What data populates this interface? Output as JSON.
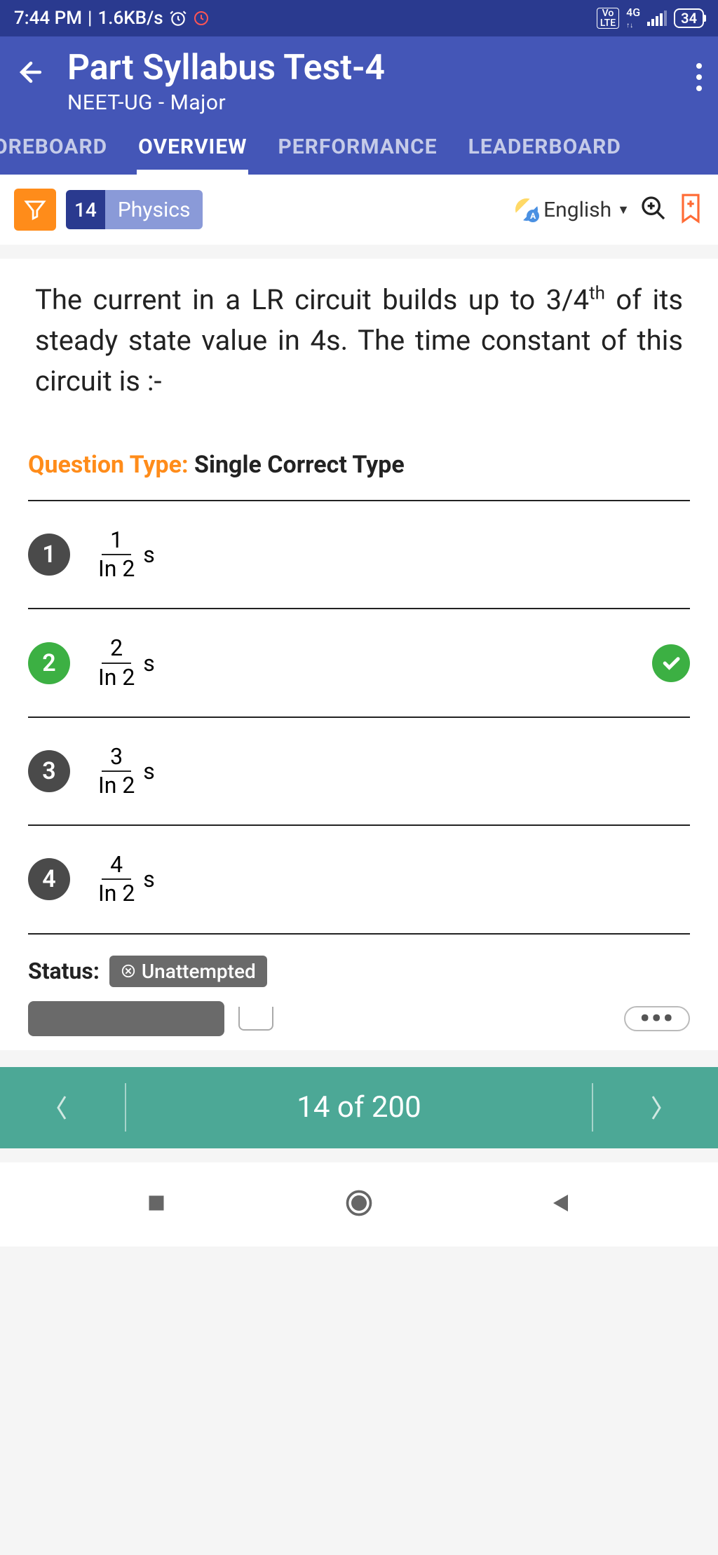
{
  "statusbar": {
    "time": "7:44 PM",
    "net_speed": "1.6KB/s",
    "volte": "Vo\nLTE",
    "network": "4G",
    "battery": "34"
  },
  "appbar": {
    "title": "Part Syllabus Test-4",
    "subtitle": "NEET-UG - Major"
  },
  "tabs": {
    "items": [
      "OREBOARD",
      "OVERVIEW",
      "PERFORMANCE",
      "LEADERBOARD"
    ],
    "active_index": 1
  },
  "toolbar": {
    "question_number": "14",
    "subject": "Physics",
    "language": "English"
  },
  "question": {
    "text_html": "The current in a LR circuit builds up to 3/4<sup>th</sup> of its steady state value in 4s. The time constant of this circuit is :-",
    "type_label": "Question Type:",
    "type_value": "Single Correct Type"
  },
  "options": [
    {
      "num": "1",
      "numerator": "1",
      "denominator": "In 2",
      "unit": "s",
      "correct": false
    },
    {
      "num": "2",
      "numerator": "2",
      "denominator": "In 2",
      "unit": "s",
      "correct": true
    },
    {
      "num": "3",
      "numerator": "3",
      "denominator": "In 2",
      "unit": "s",
      "correct": false
    },
    {
      "num": "4",
      "numerator": "4",
      "denominator": "In 2",
      "unit": "s",
      "correct": false
    }
  ],
  "status": {
    "label": "Status:",
    "value": "Unattempted"
  },
  "pager": {
    "text": "14 of 200"
  },
  "colors": {
    "header_bg": "#4456b7",
    "statusbar_bg": "#2a3a8f",
    "accent_orange": "#ff8c1a",
    "subject_badge_light": "#8a9ad8",
    "correct_green": "#3cb043",
    "pager_bg": "#4ca896",
    "bookmark": "#ff6b35"
  }
}
